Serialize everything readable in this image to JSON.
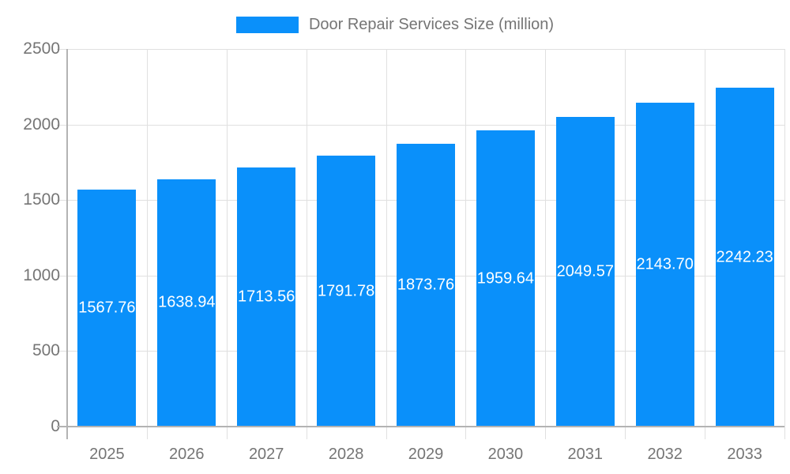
{
  "legend": {
    "label": "Door Repair Services Size (million)"
  },
  "colors": {
    "bar": "#0a90fa",
    "grid": "#e0e0e0",
    "axis": "#b3b3b3",
    "text": "#757575",
    "bar_label": "#ffffff"
  },
  "chart_data": {
    "type": "bar",
    "title": "Door Repair Services Size (million)",
    "legend_entries": [
      "Door Repair Services Size (million)"
    ],
    "legend_position": "top",
    "categories": [
      "2025",
      "2026",
      "2027",
      "2028",
      "2029",
      "2030",
      "2031",
      "2032",
      "2033"
    ],
    "values": [
      1567.76,
      1638.94,
      1713.56,
      1791.78,
      1873.76,
      1959.64,
      2049.57,
      2143.7,
      2242.23
    ],
    "bar_labels": [
      "1567.76",
      "1638.94",
      "1713.56",
      "1791.78",
      "1873.76",
      "1959.64",
      "2049.57",
      "2143.70",
      "2242.23"
    ],
    "xlabel": "",
    "ylabel": "",
    "ylim": [
      0,
      2500
    ],
    "yticks": [
      0,
      500,
      1000,
      1500,
      2000,
      2500
    ],
    "grid": true
  }
}
